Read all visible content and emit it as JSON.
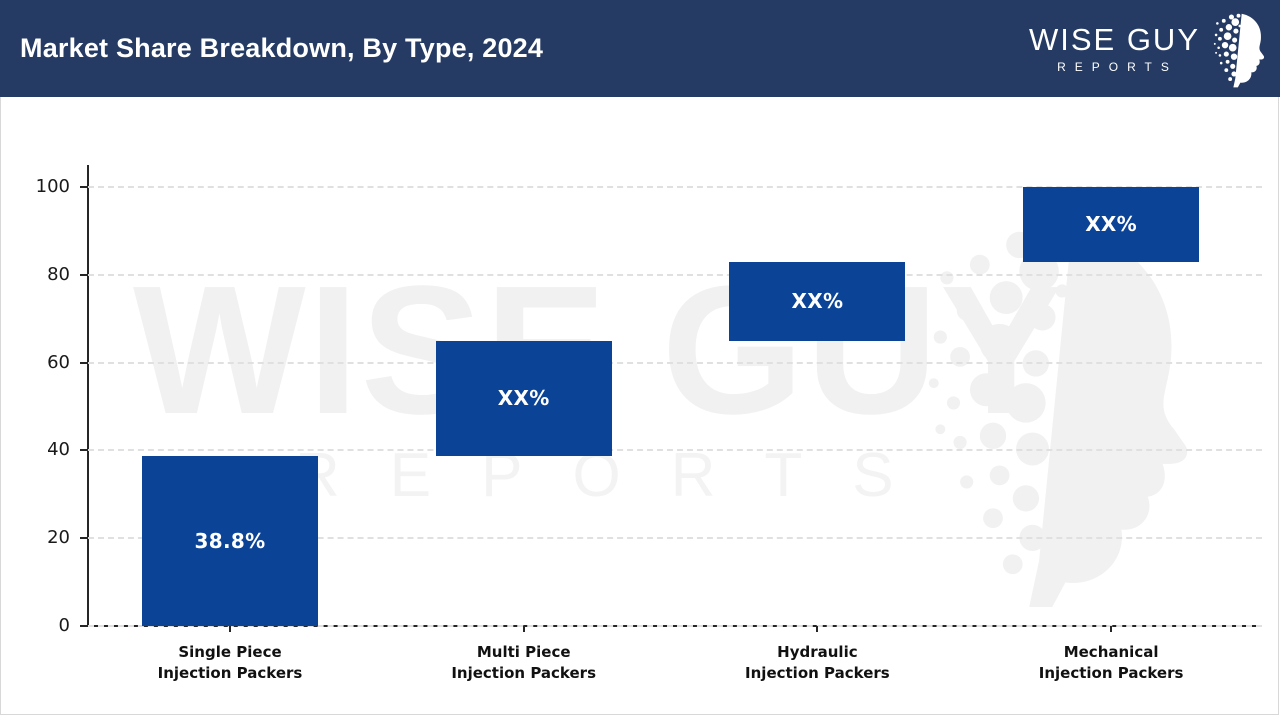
{
  "header": {
    "title": "Market Share Breakdown, By Type, 2024",
    "bg_color": "#253b63",
    "logo": {
      "line1": "WISE GUY",
      "line2": "REPORTS"
    }
  },
  "watermark": {
    "title": "WISE GUY",
    "subtitle": "REPORTS"
  },
  "chart_data": {
    "type": "bar",
    "subtype": "waterfall",
    "title": "Market Share Breakdown, By Type, 2024",
    "categories": [
      {
        "line1": "Single Piece",
        "line2": "Injection Packers"
      },
      {
        "line1": "Multi Piece",
        "line2": "Injection Packers"
      },
      {
        "line1": "Hydraulic",
        "line2": "Injection Packers"
      },
      {
        "line1": "Mechanical",
        "line2": "Injection Packers"
      }
    ],
    "bars": [
      {
        "start": 0,
        "end": 38.8,
        "label": "38.8%"
      },
      {
        "start": 38.8,
        "end": 65,
        "label": "XX%"
      },
      {
        "start": 65,
        "end": 83,
        "label": "XX%"
      },
      {
        "start": 83,
        "end": 100,
        "label": "XX%"
      }
    ],
    "ylim": [
      0,
      105
    ],
    "yticks": [
      0,
      20,
      40,
      60,
      80,
      100
    ],
    "grid": "horizontal-dashed",
    "legend": "none",
    "xlabel": "",
    "ylabel": "",
    "bar_color": "#0b4397",
    "bar_label_color": "#ffffff"
  }
}
